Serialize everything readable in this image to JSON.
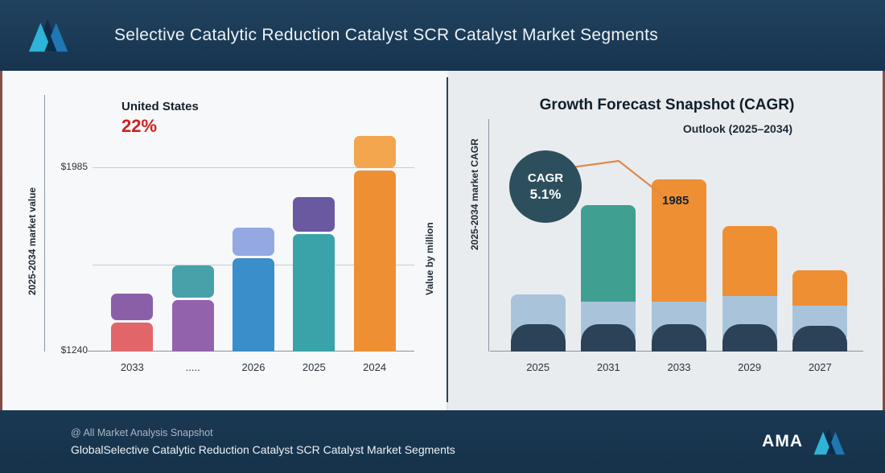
{
  "header": {
    "title": "Selective Catalytic Reduction Catalyst SCR Catalyst Market Segments",
    "brand": "AMA"
  },
  "footer": {
    "line1": "@ All Market Analysis Snapshot",
    "line2": "GlobalSelective Catalytic Reduction Catalyst SCR Catalyst Market Segments",
    "brand": "AMA"
  },
  "colors": {
    "header_bg": "#17344f",
    "accent_red": "#cf1f1f",
    "orange": "#ee8f33",
    "teal": "#39a3a9",
    "blue": "#3a8ec9",
    "purple": "#8a5fa8",
    "navy": "#2c4257",
    "badge_bg": "#2d4e5d",
    "connector": "#dd8a4d"
  },
  "chart_data": [
    {
      "type": "bar",
      "panel": "left",
      "title": "United States",
      "annotation": "22%",
      "ylabel": "2025-2034 market value",
      "ylabel2": "Value by million",
      "ytick_labels": [
        "$1985",
        "$1240"
      ],
      "ylim": [
        1240,
        2280
      ],
      "gridline_values": [
        1985,
        1590
      ],
      "categories": [
        "2033",
        ".....",
        "2026",
        "2025",
        "2024"
      ],
      "bars": [
        {
          "total": 1475,
          "segments": [
            {
              "color": "#e0666a",
              "from": 1240,
              "to": 1358,
              "shape": "round"
            },
            {
              "color": "#8a5fa8",
              "from": 1368,
              "to": 1475,
              "shape": "cap"
            }
          ]
        },
        {
          "total": 1588,
          "segments": [
            {
              "color": "#9263ac",
              "from": 1240,
              "to": 1448,
              "shape": "round"
            },
            {
              "color": "#48a1a8",
              "from": 1458,
              "to": 1588,
              "shape": "cap"
            }
          ]
        },
        {
          "total": 1741,
          "segments": [
            {
              "color": "#3a8ec9",
              "from": 1240,
              "to": 1618,
              "shape": "round"
            },
            {
              "color": "#94a9e2",
              "from": 1628,
              "to": 1741,
              "shape": "cap"
            }
          ]
        },
        {
          "total": 1865,
          "segments": [
            {
              "color": "#39a3a9",
              "from": 1240,
              "to": 1715,
              "shape": "round"
            },
            {
              "color": "#6a58a0",
              "from": 1725,
              "to": 1865,
              "shape": "cap"
            }
          ]
        },
        {
          "total": 2115,
          "segments": [
            {
              "color": "#ee8f33",
              "from": 1240,
              "to": 1975,
              "shape": "round"
            },
            {
              "color": "#f3a64d",
              "from": 1985,
              "to": 2115,
              "shape": "cap"
            }
          ]
        }
      ]
    },
    {
      "type": "bar",
      "panel": "right",
      "title": "Growth Forecast Snapshot (CAGR)",
      "subtitle": "Outlook (2025–2034)",
      "ylabel": "2025-2034 market CAGR",
      "badge": {
        "label": "CAGR",
        "value": "5.1%"
      },
      "annotation": "1985",
      "ylim": [
        0,
        100
      ],
      "gridline_values": [],
      "categories": [
        "2025",
        "2031",
        "2033",
        "2029",
        "2027"
      ],
      "bars": [
        {
          "total": 31,
          "segments": [
            {
              "color": "#2c4257",
              "from": 0,
              "to": 15,
              "shape": "dome"
            },
            {
              "color": "#a9c4da",
              "from": 8,
              "to": 31,
              "shape": "top8"
            }
          ]
        },
        {
          "total": 79,
          "segments": [
            {
              "color": "#2c4257",
              "from": 0,
              "to": 15,
              "shape": "dome"
            },
            {
              "color": "#a9c4da",
              "from": 8,
              "to": 27
            },
            {
              "color": "#3f9f90",
              "from": 27,
              "to": 79,
              "shape": "top8"
            }
          ]
        },
        {
          "total": 93,
          "segments": [
            {
              "color": "#2c4257",
              "from": 0,
              "to": 15,
              "shape": "dome"
            },
            {
              "color": "#a9c4da",
              "from": 8,
              "to": 27
            },
            {
              "color": "#ee8f33",
              "from": 27,
              "to": 93,
              "shape": "top8"
            }
          ]
        },
        {
          "total": 68,
          "segments": [
            {
              "color": "#2c4257",
              "from": 0,
              "to": 15,
              "shape": "dome"
            },
            {
              "color": "#a9c4da",
              "from": 8,
              "to": 30
            },
            {
              "color": "#ee8f33",
              "from": 30,
              "to": 68,
              "shape": "top8"
            }
          ]
        },
        {
          "total": 44,
          "segments": [
            {
              "color": "#2c4257",
              "from": 0,
              "to": 14,
              "shape": "dome"
            },
            {
              "color": "#a9c4da",
              "from": 8,
              "to": 25
            },
            {
              "color": "#ee8f33",
              "from": 25,
              "to": 44,
              "shape": "top8"
            }
          ]
        }
      ]
    }
  ]
}
